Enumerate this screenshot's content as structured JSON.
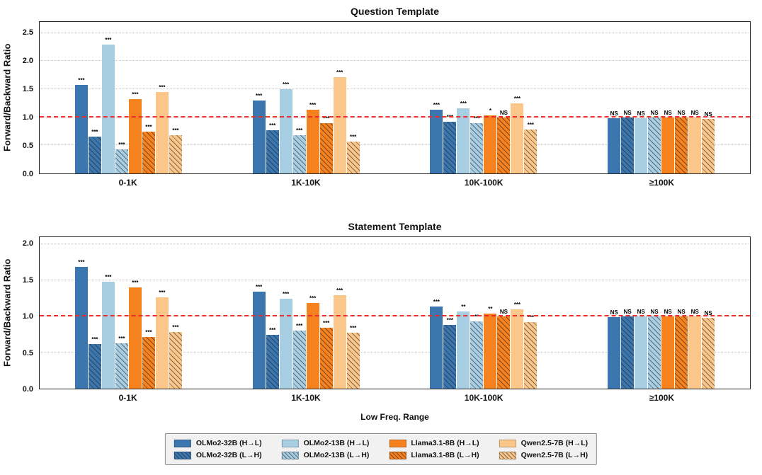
{
  "figure": {
    "xlabel": "Low Freq. Range",
    "reference_line_color": "#ee2b2b"
  },
  "chart_data": [
    {
      "type": "bar",
      "title": "Question Template",
      "ylabel": "Forward/Backward Ratio",
      "xlabel": "",
      "categories": [
        "0-1K",
        "1K-10K",
        "10K-100K",
        "≥100K"
      ],
      "ylim": [
        0,
        2.7
      ],
      "yticks": [
        0.0,
        0.5,
        1.0,
        1.5,
        2.0,
        2.5
      ],
      "reference_line": 1.0,
      "grid": true,
      "legend_position": "bottom-figure",
      "series": [
        {
          "name": "OLMo2-32B (H→L)",
          "color": "#3C76AF",
          "hatch": false,
          "values": [
            1.58,
            1.3,
            1.14,
            0.99
          ],
          "sig": [
            "***",
            "***",
            "***",
            "NS"
          ]
        },
        {
          "name": "OLMo2-32B (L→H)",
          "color": "#3C76AF",
          "hatch": true,
          "values": [
            0.65,
            0.77,
            0.92,
            1.0
          ],
          "sig": [
            "***",
            "***",
            "***",
            "NS"
          ]
        },
        {
          "name": "OLMo2-13B (H→L)",
          "color": "#A8CEE4",
          "hatch": false,
          "values": [
            2.3,
            1.5,
            1.16,
            0.99
          ],
          "sig": [
            "***",
            "***",
            "***",
            "NS"
          ]
        },
        {
          "name": "OLMo2-13B (L→H)",
          "color": "#A8CEE4",
          "hatch": true,
          "values": [
            0.43,
            0.68,
            0.9,
            1.0
          ],
          "sig": [
            "***",
            "***",
            "***",
            "NS"
          ]
        },
        {
          "name": "Llama3.1-8B (H→L)",
          "color": "#F5811F",
          "hatch": false,
          "values": [
            1.33,
            1.14,
            1.03,
            1.0
          ],
          "sig": [
            "***",
            "***",
            "*",
            "NS"
          ]
        },
        {
          "name": "Llama3.1-8B (L→H)",
          "color": "#F5811F",
          "hatch": true,
          "values": [
            0.74,
            0.9,
            1.0,
            1.0
          ],
          "sig": [
            "***",
            "***",
            "NS",
            "NS"
          ]
        },
        {
          "name": "Qwen2.5-7B (H→L)",
          "color": "#FAC689",
          "hatch": false,
          "values": [
            1.45,
            1.71,
            1.25,
            1.0
          ],
          "sig": [
            "***",
            "***",
            "***",
            "NS"
          ]
        },
        {
          "name": "Qwen2.5-7B (L→H)",
          "color": "#FAC689",
          "hatch": true,
          "values": [
            0.68,
            0.57,
            0.78,
            0.97
          ],
          "sig": [
            "***",
            "***",
            "***",
            "NS"
          ]
        }
      ]
    },
    {
      "type": "bar",
      "title": "Statement Template",
      "ylabel": "Forward/Backward Ratio",
      "xlabel": "Low Freq. Range",
      "categories": [
        "0-1K",
        "1K-10K",
        "10K-100K",
        "≥100K"
      ],
      "ylim": [
        0,
        2.1
      ],
      "yticks": [
        0.0,
        0.5,
        1.0,
        1.5,
        2.0
      ],
      "reference_line": 1.0,
      "grid": true,
      "legend_position": "bottom-figure",
      "series": [
        {
          "name": "OLMo2-32B (H→L)",
          "color": "#3C76AF",
          "hatch": false,
          "values": [
            1.69,
            1.34,
            1.14,
            0.99
          ],
          "sig": [
            "***",
            "***",
            "***",
            "NS"
          ]
        },
        {
          "name": "OLMo2-32B (L→H)",
          "color": "#3C76AF",
          "hatch": true,
          "values": [
            0.62,
            0.75,
            0.88,
            1.0
          ],
          "sig": [
            "***",
            "***",
            "***",
            "NS"
          ]
        },
        {
          "name": "OLMo2-13B (H→L)",
          "color": "#A8CEE4",
          "hatch": false,
          "values": [
            1.48,
            1.25,
            1.07,
            1.0
          ],
          "sig": [
            "***",
            "***",
            "**",
            "NS"
          ]
        },
        {
          "name": "OLMo2-13B (L→H)",
          "color": "#A8CEE4",
          "hatch": true,
          "values": [
            0.63,
            0.8,
            0.93,
            1.0
          ],
          "sig": [
            "***",
            "***",
            "**",
            "NS"
          ]
        },
        {
          "name": "Llama3.1-8B (H→L)",
          "color": "#F5811F",
          "hatch": false,
          "values": [
            1.4,
            1.19,
            1.04,
            1.0
          ],
          "sig": [
            "***",
            "***",
            "**",
            "NS"
          ]
        },
        {
          "name": "Llama3.1-8B (L→H)",
          "color": "#F5811F",
          "hatch": true,
          "values": [
            0.72,
            0.84,
            1.0,
            1.0
          ],
          "sig": [
            "***",
            "***",
            "NS",
            "NS"
          ]
        },
        {
          "name": "Qwen2.5-7B (H→L)",
          "color": "#FAC689",
          "hatch": false,
          "values": [
            1.27,
            1.3,
            1.1,
            1.0
          ],
          "sig": [
            "***",
            "***",
            "***",
            "NS"
          ]
        },
        {
          "name": "Qwen2.5-7B (L→H)",
          "color": "#FAC689",
          "hatch": true,
          "values": [
            0.79,
            0.78,
            0.92,
            0.98
          ],
          "sig": [
            "***",
            "***",
            "***",
            "NS"
          ]
        }
      ]
    }
  ]
}
